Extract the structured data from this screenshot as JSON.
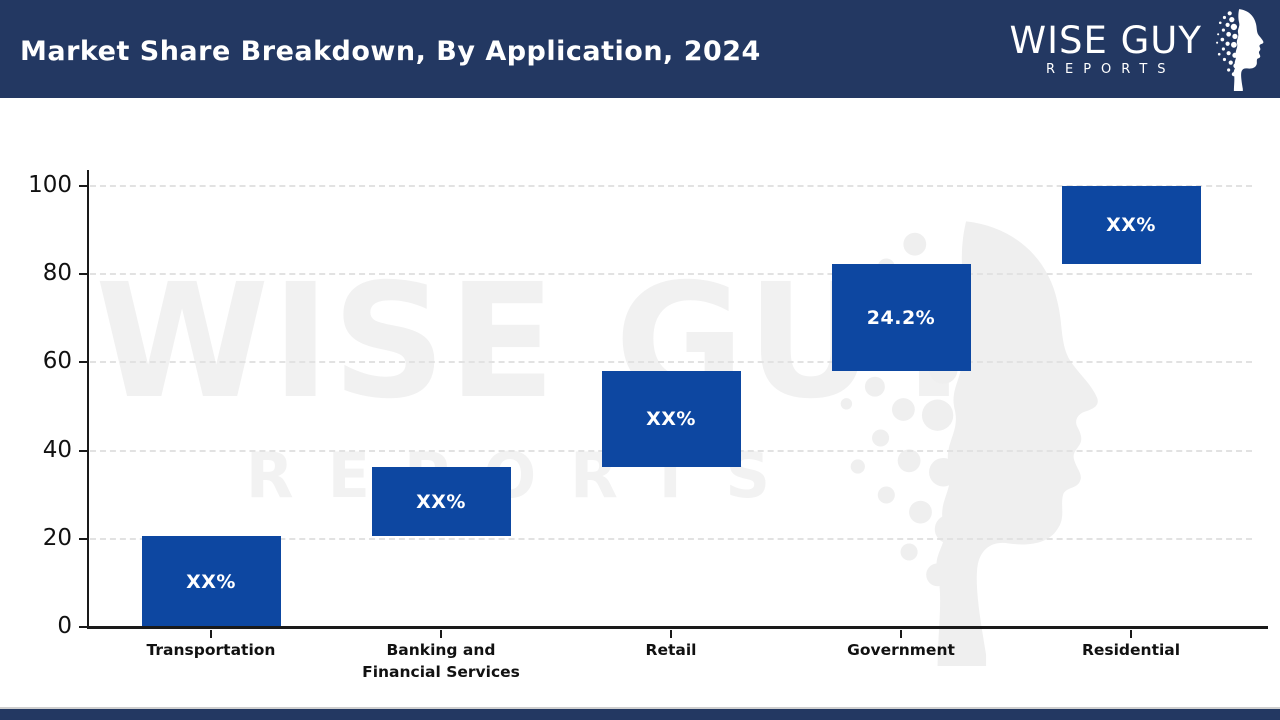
{
  "header": {
    "title": "Market Share Breakdown, By Application, 2024",
    "logo": {
      "name": "WISE GUY",
      "subtitle": "REPORTS"
    }
  },
  "watermark": {
    "line1": "WISE GUY",
    "line2": "REPORTS"
  },
  "chart_data": {
    "type": "bar",
    "subtype": "waterfall",
    "title": "Market Share Breakdown, By Application, 2024",
    "ylim": [
      0,
      100
    ],
    "y_ticks": [
      0,
      20,
      40,
      60,
      80,
      100
    ],
    "grid": "horizontal-dashed",
    "bar_color": "#0d47a1",
    "label_color": "#ffffff",
    "categories": [
      "Transportation",
      "Banking and Financial Services",
      "Retail",
      "Government",
      "Residential"
    ],
    "bars": [
      {
        "category_lines": [
          "Transportation"
        ],
        "label": "XX%",
        "start": 0,
        "end": 20.6,
        "value": 20.6
      },
      {
        "category_lines": [
          "Banking and",
          "Financial Services"
        ],
        "label": "XX%",
        "start": 20.6,
        "end": 36.3,
        "value": 15.7
      },
      {
        "category_lines": [
          "Retail"
        ],
        "label": "XX%",
        "start": 36.3,
        "end": 58.0,
        "value": 21.7
      },
      {
        "category_lines": [
          "Government"
        ],
        "label": "24.2%",
        "start": 58.0,
        "end": 82.2,
        "value": 24.2
      },
      {
        "category_lines": [
          "Residential"
        ],
        "label": "XX%",
        "start": 82.2,
        "end": 100,
        "value": 17.8
      }
    ]
  }
}
